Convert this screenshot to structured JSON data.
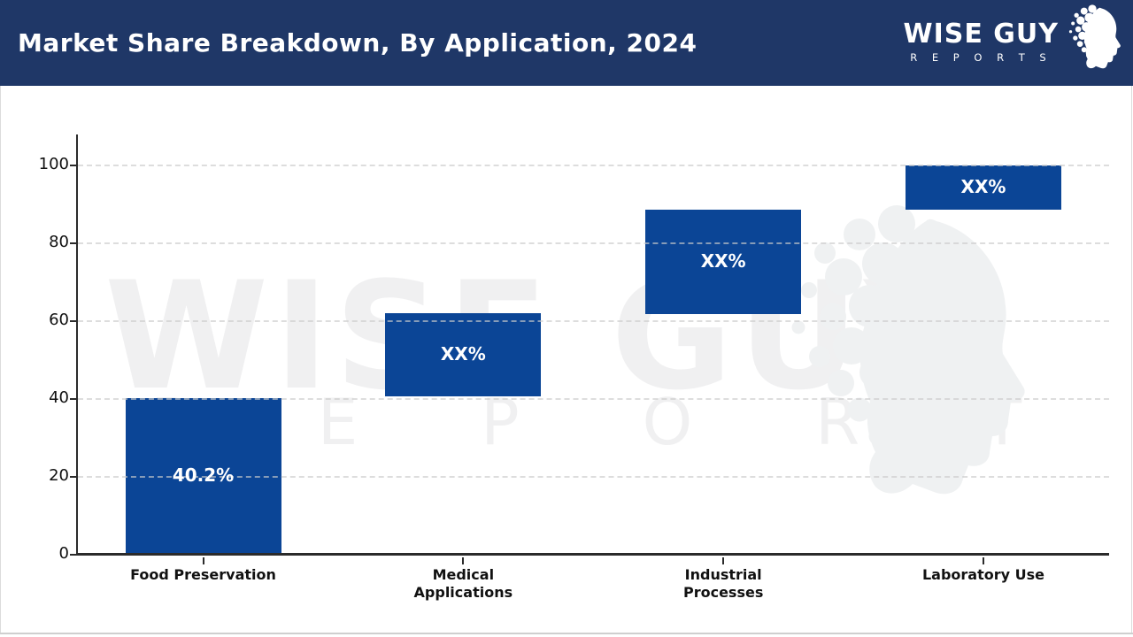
{
  "header": {
    "title": "Market Share Breakdown, By Application, 2024",
    "bg_color": "#1f3767",
    "logo": {
      "line1": "WISE GUY",
      "line2": "R E P O R T S",
      "icon": "dotted-head-profile"
    }
  },
  "watermark": {
    "line1": "WISE GUY",
    "line2": "R E P O R T S"
  },
  "chart_data": {
    "type": "bar",
    "subtype": "waterfall",
    "title": "Market Share Breakdown, By Application, 2024",
    "categories": [
      "Food Preservation",
      "Medical Applications",
      "Industrial Processes",
      "Laboratory Use"
    ],
    "category_label_lines": [
      [
        "Food Preservation"
      ],
      [
        "Medical",
        "Applications"
      ],
      [
        "Industrial",
        "Processes"
      ],
      [
        "Laboratory Use"
      ]
    ],
    "segments": [
      {
        "category": "Food Preservation",
        "start": 0,
        "end": 40.2,
        "label": "40.2%"
      },
      {
        "category": "Medical Applications",
        "start": 40.6,
        "end": 62.0,
        "label": "XX%"
      },
      {
        "category": "Industrial Processes",
        "start": 61.8,
        "end": 88.6,
        "label": "XX%"
      },
      {
        "category": "Laboratory Use",
        "start": 88.6,
        "end": 100,
        "label": "XX%"
      }
    ],
    "xlabel": "",
    "ylabel": "",
    "ylim": [
      0,
      100
    ],
    "yticks": [
      0,
      20,
      40,
      60,
      80,
      100
    ],
    "grid": "horizontal-dashed",
    "legend": "none",
    "bar_color": "#0b4596",
    "bar_label_color": "#ffffff"
  }
}
